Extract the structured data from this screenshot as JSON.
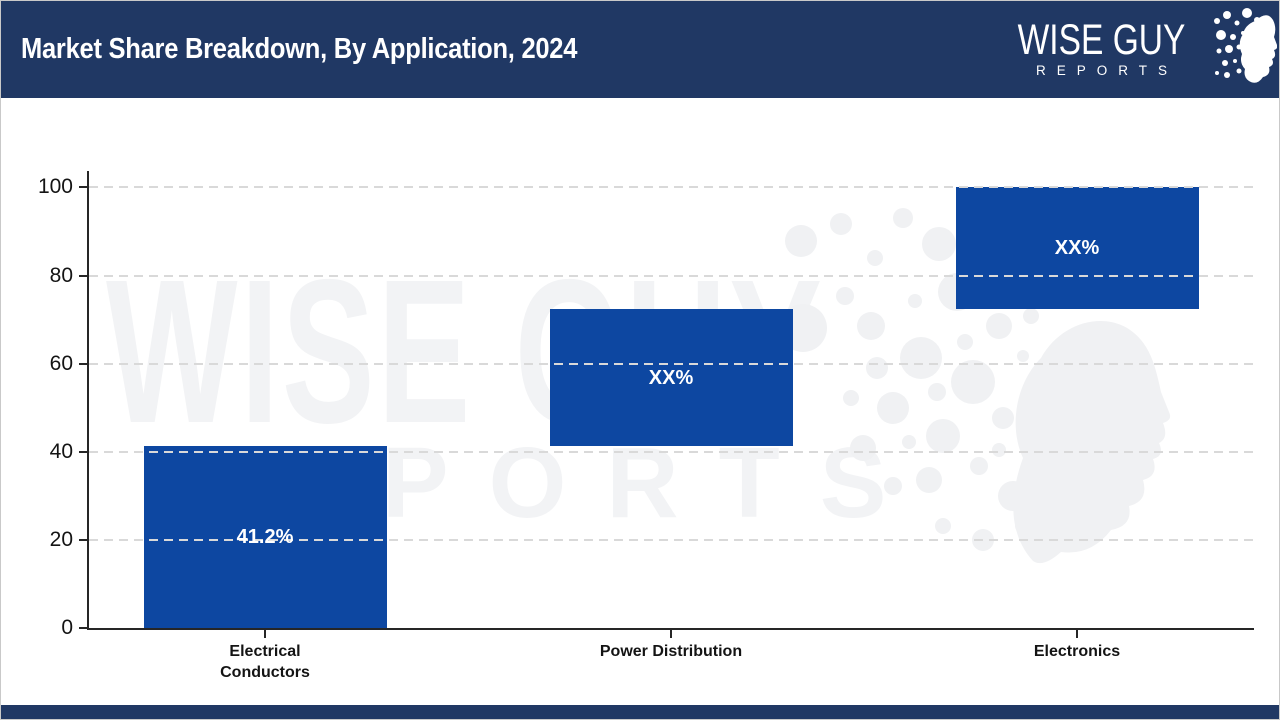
{
  "header": {
    "title": "Market Share Breakdown, By Application, 2024",
    "brand": {
      "name_top": "WISE GUY",
      "name_bottom": "REPORTS"
    }
  },
  "watermark": {
    "line1": "WISE GUY",
    "line2": "REPORTS"
  },
  "chart_data": {
    "type": "bar",
    "subtype": "waterfall",
    "title": "Market Share Breakdown, By Application, 2024",
    "xlabel": "",
    "ylabel": "",
    "categories": [
      "Electrical Conductors",
      "Power Distribution",
      "Electronics"
    ],
    "segments": [
      {
        "category": "Electrical Conductors",
        "start": 0,
        "end": 41.2,
        "label": "41.2%"
      },
      {
        "category": "Power Distribution",
        "start": 41.2,
        "end": 72.4,
        "label": "XX%"
      },
      {
        "category": "Electronics",
        "start": 72.4,
        "end": 100,
        "label": "XX%"
      }
    ],
    "ylim": [
      0,
      100
    ],
    "yticks": [
      0,
      20,
      40,
      60,
      80,
      100
    ],
    "grid": "horizontal-dashed",
    "legend": "none"
  },
  "colors": {
    "header_bg": "#203864",
    "bar": "#0d47a1",
    "axis": "#262626",
    "grid": "#d9d9d9",
    "wm": "#f2f3f5"
  }
}
